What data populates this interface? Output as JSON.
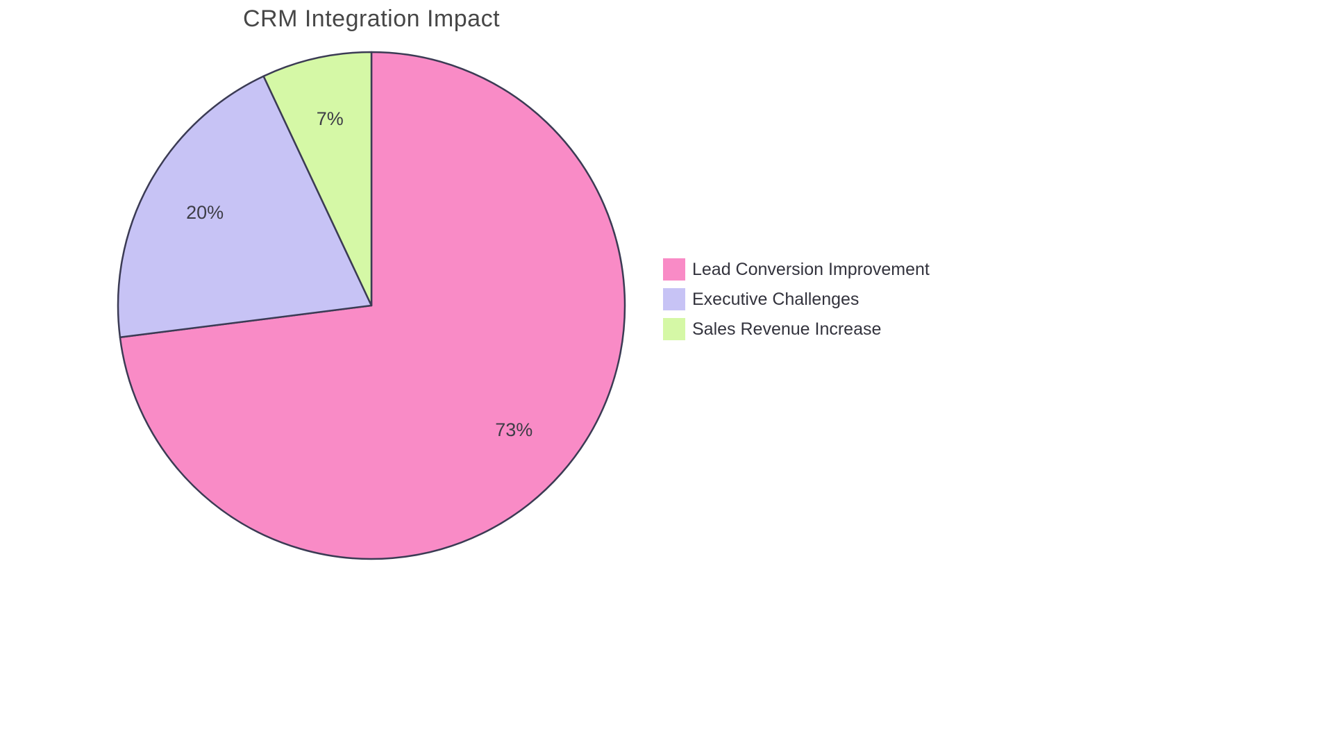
{
  "chart_data": {
    "type": "pie",
    "title": "CRM Integration Impact",
    "labels": [
      "Lead Conversion Improvement",
      "Executive Challenges",
      "Sales Revenue Increase"
    ],
    "values": [
      73,
      20,
      7
    ],
    "percent_labels": [
      "73%",
      "20%",
      "7%"
    ],
    "colors": [
      "#F98BC6",
      "#C7C3F5",
      "#D5F8A6"
    ],
    "outline_color": "#3b3b54",
    "start_angle_deg": 0,
    "direction": "clockwise",
    "legend_position": "right",
    "background_color": "#ffffff"
  }
}
